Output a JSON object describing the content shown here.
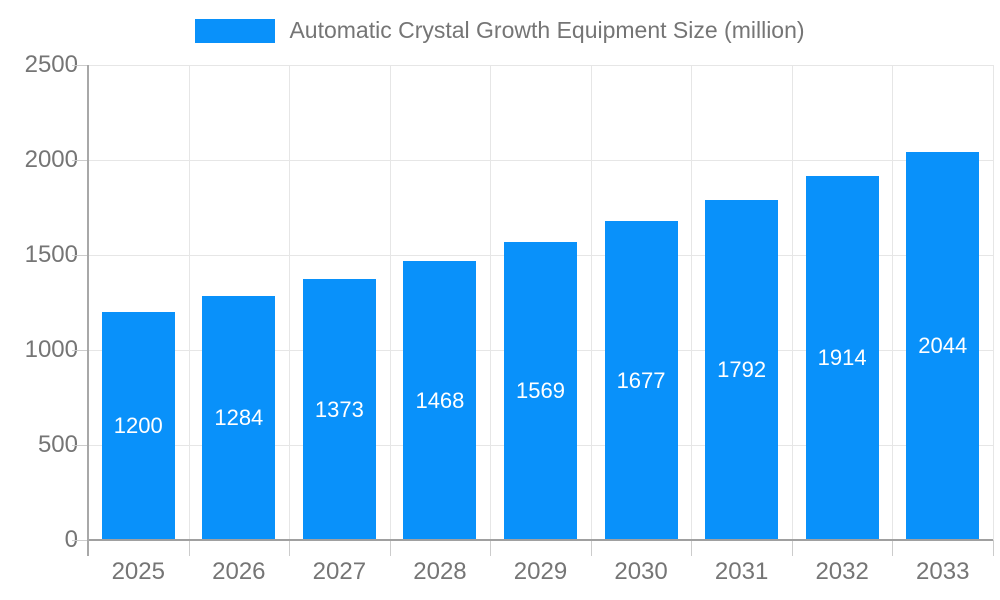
{
  "legend": {
    "label": "Automatic Crystal Growth Equipment Size (million)"
  },
  "colors": {
    "bar": "#0991FA",
    "value_label": "#ffffff",
    "axis_text": "#757575",
    "gridline": "#e6e6e6",
    "axis_line": "#a0a0a0",
    "tick": "#cccccc",
    "background": "#ffffff"
  },
  "chart_data": {
    "type": "bar",
    "title": "Automatic Crystal Growth Equipment Size (million)",
    "xlabel": "",
    "ylabel": "",
    "categories": [
      "2025",
      "2026",
      "2027",
      "2028",
      "2029",
      "2030",
      "2031",
      "2032",
      "2033"
    ],
    "values": [
      1200,
      1284,
      1373,
      1468,
      1569,
      1677,
      1792,
      1914,
      2044
    ],
    "ylim": [
      0,
      2500
    ],
    "yticks": [
      0,
      500,
      1000,
      1500,
      2000,
      2500
    ],
    "grid": true,
    "legend_position": "top",
    "value_labels": "inside-center"
  }
}
